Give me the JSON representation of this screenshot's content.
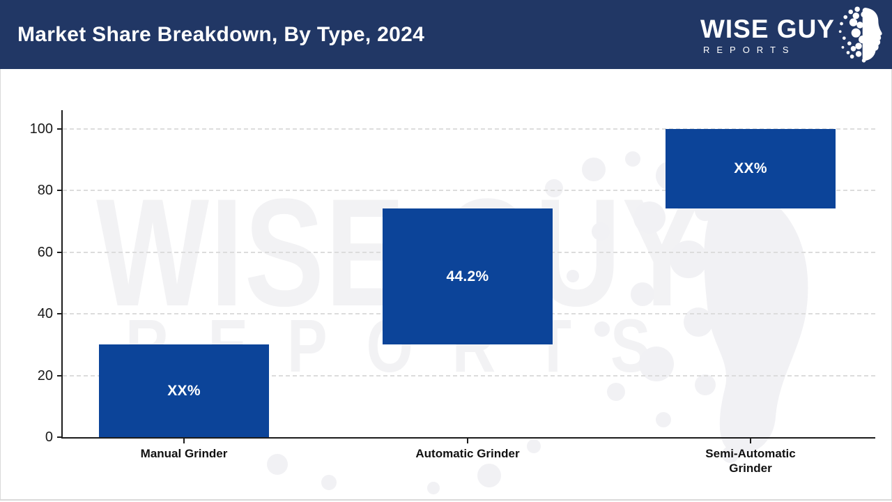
{
  "header": {
    "title": "Market Share Breakdown, By Type, 2024",
    "bg_color": "#213765",
    "logo": {
      "line1": "WISE GUY",
      "line2": "REPORTS"
    }
  },
  "watermark": {
    "line1": "WISE GUY",
    "line2": "REPORTS"
  },
  "chart_data": {
    "type": "bar",
    "subtype": "floating-segment-waterfall",
    "title": "Market Share Breakdown, By Type, 2024",
    "categories": [
      "Manual Grinder",
      "Automatic Grinder",
      "Semi-Automatic\nGrinder"
    ],
    "segments": [
      {
        "category": "Manual Grinder",
        "start": 0,
        "end": 30,
        "value_label": "XX%"
      },
      {
        "category": "Automatic Grinder",
        "start": 30,
        "end": 74.2,
        "value_label": "44.2%"
      },
      {
        "category": "Semi-Automatic Grinder",
        "start": 74.2,
        "end": 100,
        "value_label": "XX%"
      }
    ],
    "ylim": [
      0,
      100
    ],
    "yticks": [
      0,
      20,
      40,
      60,
      80,
      100
    ],
    "xlabel": "",
    "ylabel": "",
    "grid": "horizontal-dashed",
    "legend": "none",
    "bar_color": "#0c4499",
    "grid_color": "#dcdcdc",
    "axis_color": "#1c1c1c"
  }
}
